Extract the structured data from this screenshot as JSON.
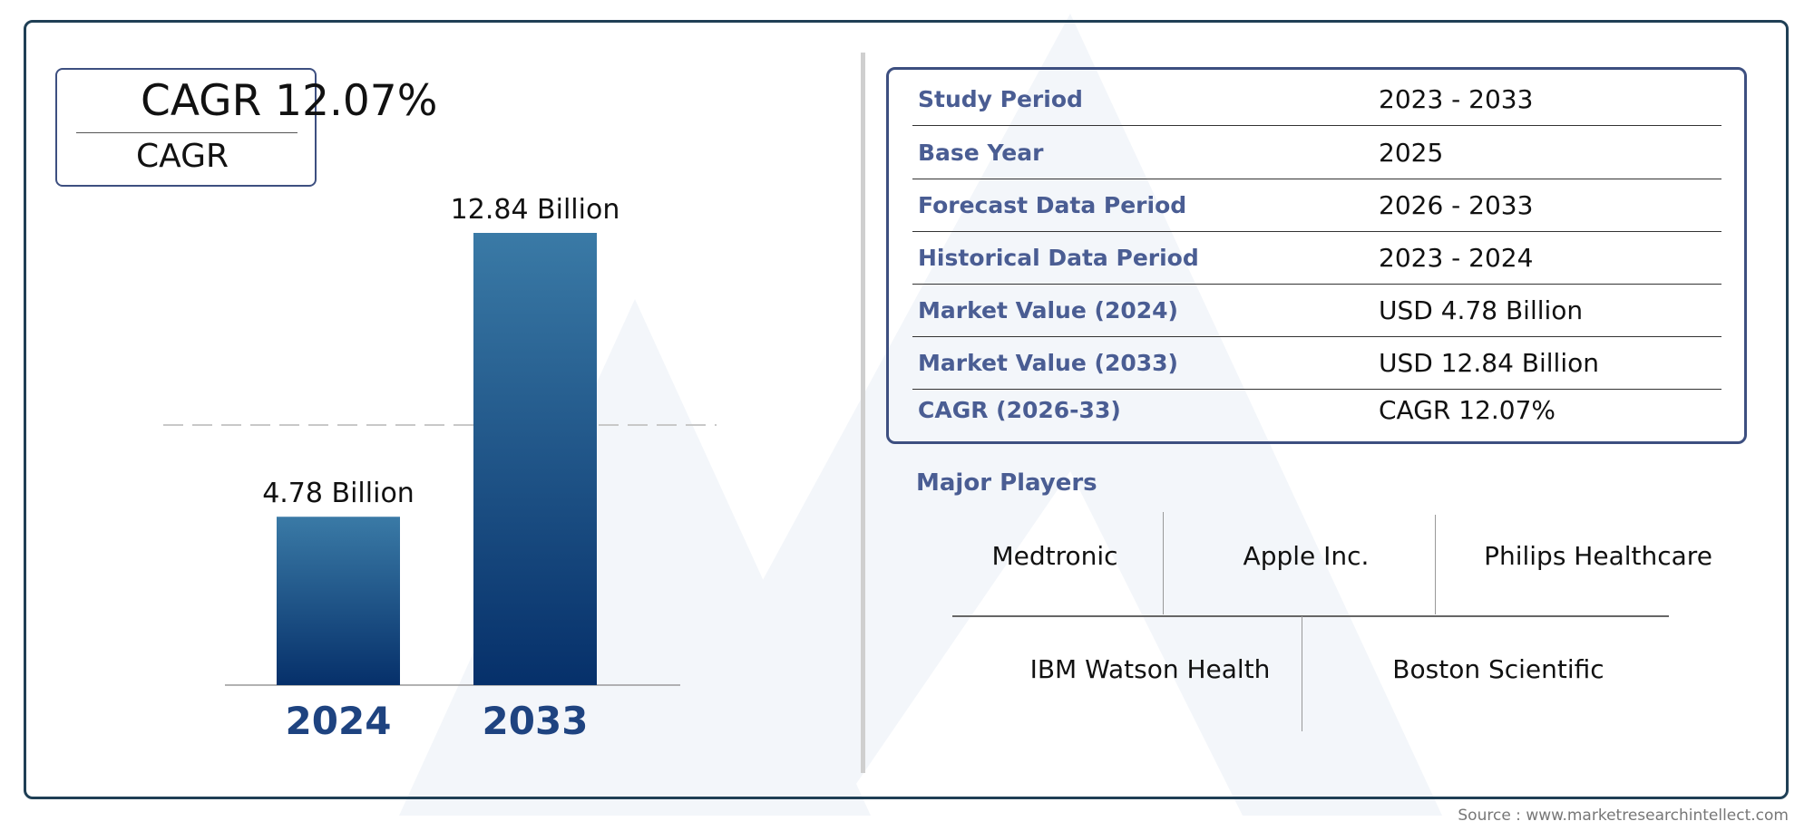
{
  "cagr_badge": {
    "value": "CAGR 12.07%",
    "label": "CAGR"
  },
  "chart_data": {
    "type": "bar",
    "categories": [
      "2024",
      "2033"
    ],
    "values": [
      4.78,
      12.84
    ],
    "data_labels": [
      "4.78 Billion",
      "12.84 Billion"
    ],
    "gradient": [
      "#3a7aa6",
      "#06306a"
    ],
    "year_color": "#1e4380"
  },
  "info_table": [
    {
      "key": "Study Period",
      "value": "2023 - 2033"
    },
    {
      "key": "Base Year",
      "value": "2025"
    },
    {
      "key": "Forecast Data Period",
      "value": "2026 - 2033"
    },
    {
      "key": "Historical Data Period",
      "value": "2023 - 2024"
    },
    {
      "key": "Market Value (2024)",
      "value": "USD 4.78 Billion"
    },
    {
      "key": "Market Value (2033)",
      "value": "USD 12.84 Billion"
    },
    {
      "key": "CAGR (2026-33)",
      "value": "CAGR 12.07%"
    }
  ],
  "players": {
    "title": "Major Players",
    "row1": [
      "Medtronic",
      "Apple Inc.",
      "Philips Healthcare"
    ],
    "row2": [
      "IBM Watson Health",
      "Boston Scientific"
    ]
  },
  "source": "Source : www.marketresearchintellect.com",
  "colors": {
    "frame": "#1f3f55",
    "accent": "#4a5d93",
    "watermark": "#eef2f8"
  }
}
